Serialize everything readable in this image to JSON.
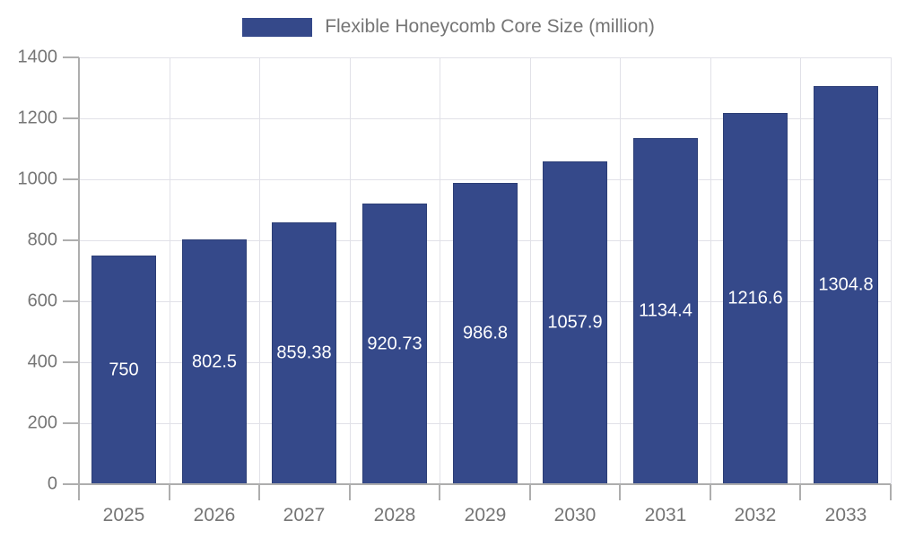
{
  "legend": {
    "label": "Flexible Honeycomb Core Size (million)"
  },
  "colors": {
    "bar": "#35498a",
    "bar_label": "#ffffff",
    "axis_text": "#757575",
    "axis_line": "#aeaeae",
    "gridline": "#e1e1e8",
    "background": "#ffffff"
  },
  "chart_data": {
    "type": "bar",
    "title": "Flexible Honeycomb Core Size (million)",
    "categories": [
      "2025",
      "2026",
      "2027",
      "2028",
      "2029",
      "2030",
      "2031",
      "2032",
      "2033"
    ],
    "values": [
      750,
      802.5,
      859.38,
      920.73,
      986.8,
      1057.9,
      1134.4,
      1216.6,
      1304.8
    ],
    "value_labels": [
      "750",
      "802.5",
      "859.38",
      "920.73",
      "986.8",
      "1057.9",
      "1134.4",
      "1216.6",
      "1304.8"
    ],
    "xlabel": "",
    "ylabel": "",
    "ylim": [
      0,
      1400
    ],
    "yticks": [
      0,
      200,
      400,
      600,
      800,
      1000,
      1200,
      1400
    ],
    "grid": true,
    "legend_position": "top"
  }
}
